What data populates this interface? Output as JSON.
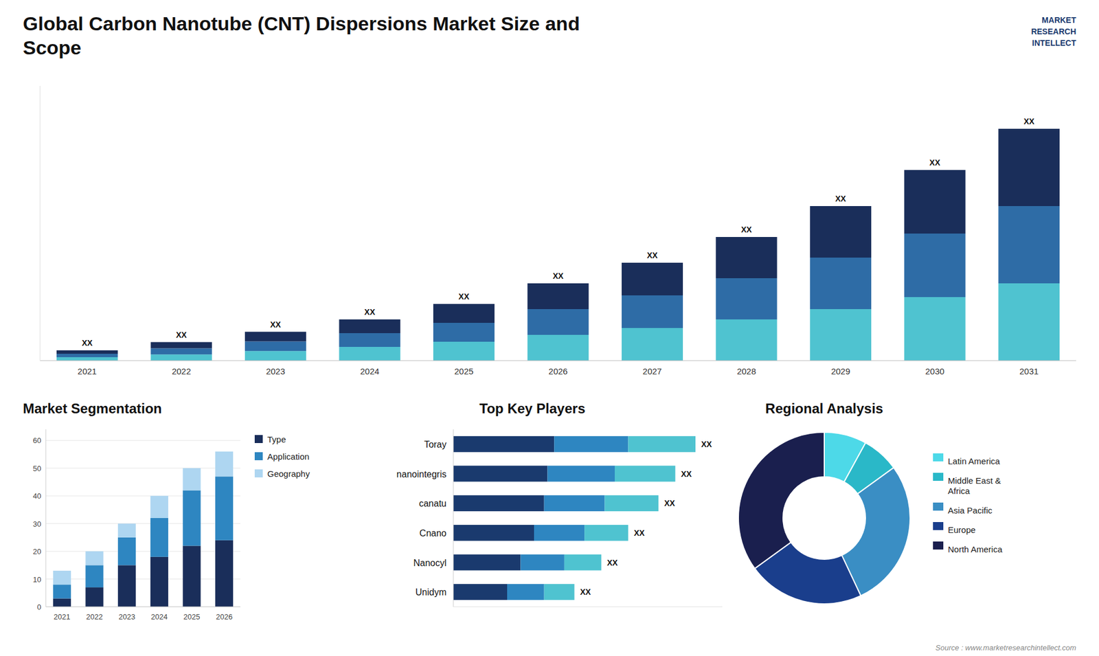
{
  "chart_data": [
    {
      "type": "bar",
      "title": "Global Carbon Nanotube (CNT) Dispersions Market Size and\nScope",
      "stacked": true,
      "tick_labels": "x",
      "grid": false,
      "categories": [
        "2021",
        "2022",
        "2023",
        "2024",
        "2025",
        "2026",
        "2027",
        "2028",
        "2029",
        "2030",
        "2031"
      ],
      "series": [
        {
          "color": "#4fc3d0",
          "values": [
            1.0,
            1.8,
            2.8,
            4.0,
            5.5,
            7.5,
            9.5,
            12.0,
            15.0,
            18.5,
            22.5
          ]
        },
        {
          "color": "#2e6ca6",
          "values": [
            1.0,
            1.8,
            2.8,
            4.0,
            5.5,
            7.5,
            9.5,
            12.0,
            15.0,
            18.5,
            22.5
          ]
        },
        {
          "color": "#1a2e5a",
          "values": [
            1.0,
            1.8,
            2.8,
            4.0,
            5.5,
            7.5,
            9.5,
            12.0,
            15.0,
            18.5,
            22.5
          ]
        }
      ],
      "total_labels": [
        "XX",
        "XX",
        "XX",
        "XX",
        "XX",
        "XX",
        "XX",
        "XX",
        "XX",
        "XX",
        "XX"
      ],
      "ylim": [
        0,
        80
      ],
      "annotations": [
        "Source : www.marketresearchintellect.com",
        "MARKET\nRESEARCH\nINTELLECT"
      ]
    },
    {
      "type": "bar",
      "title": "Market Segmentation",
      "stacked": true,
      "grid": true,
      "legend": "right",
      "categories": [
        "2021",
        "2022",
        "2023",
        "2024",
        "2025",
        "2026"
      ],
      "series": [
        {
          "name": "Type",
          "color": "#1a2e5a",
          "values": [
            3,
            7,
            15,
            18,
            22,
            24
          ]
        },
        {
          "name": "Application",
          "color": "#2e86c1",
          "values": [
            5,
            8,
            10,
            14,
            20,
            23
          ]
        },
        {
          "name": "Geography",
          "color": "#aed6f1",
          "values": [
            5,
            5,
            5,
            8,
            8,
            9
          ]
        }
      ],
      "ylim": [
        0,
        64
      ],
      "yticks": [
        0,
        10,
        20,
        30,
        40,
        50,
        60
      ]
    },
    {
      "type": "bar",
      "title": "Top Key Players",
      "orientation": "horizontal",
      "stacked": true,
      "tick_labels": "y",
      "categories": [
        "Toray",
        "nanointegris",
        "canatu",
        "Cnano",
        "Nanocyl",
        "Unidym"
      ],
      "series": [
        {
          "color": "#1a3a6e",
          "values": [
            0.3,
            0.28,
            0.27,
            0.24,
            0.2,
            0.16
          ]
        },
        {
          "color": "#2e86c1",
          "values": [
            0.22,
            0.2,
            0.18,
            0.15,
            0.13,
            0.11
          ]
        },
        {
          "color": "#4fc3d0",
          "values": [
            0.2,
            0.18,
            0.16,
            0.13,
            0.11,
            0.09
          ]
        }
      ],
      "total_labels": [
        "XX",
        "XX",
        "XX",
        "XX",
        "XX",
        "XX"
      ],
      "xlim": [
        0,
        0.8
      ]
    },
    {
      "type": "pie",
      "title": "Regional Analysis",
      "legend": "right",
      "categories": [
        "Latin America",
        "Middle East &\nAfrica",
        "Asia Pacific",
        "Europe",
        "North America"
      ],
      "values": [
        8,
        7,
        28,
        22,
        35
      ],
      "colors": [
        "#4dd9e8",
        "#2ab8c8",
        "#3a8ec4",
        "#1a3e8c",
        "#1a1f4e"
      ]
    }
  ]
}
